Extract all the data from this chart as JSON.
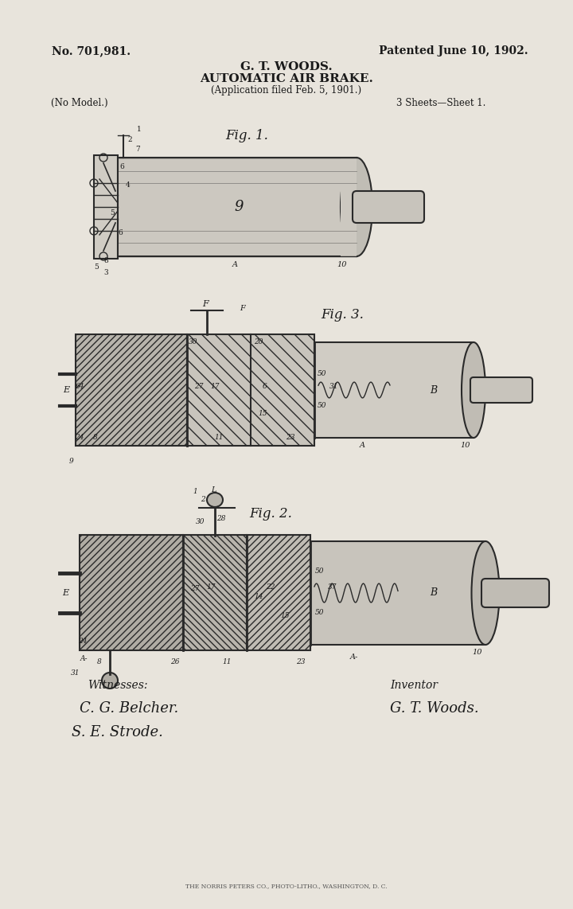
{
  "bg_color": "#e8e4dc",
  "title_line1": "No. 701,981.",
  "title_line2": "Patented June 10, 1902.",
  "title_center1": "G. T. WOODS.",
  "title_center2": "AUTOMATIC AIR BRAKE.",
  "title_center3": "(Application filed Feb. 5, 1901.)",
  "title_left": "(No Model.)",
  "title_right": "3 Sheets—Sheet 1.",
  "fig1_label": "Fig. 1.",
  "fig2_label": "Fig. 2.",
  "fig3_label": "Fig. 3.",
  "witness_label": "Witnesses:",
  "witness1": "C. G. Belcher.",
  "witness2": "S. E. Strode.",
  "inventor_label": "Inventor",
  "inventor_name": "G. T. Woods.",
  "footer": "THE NORRIS PETERS CO., PHOTO-LITHO., WASHINGTON, D. C.",
  "text_color": "#1a1a1a",
  "line_color": "#2a2a2a",
  "hatch_color": "#3a3a3a"
}
